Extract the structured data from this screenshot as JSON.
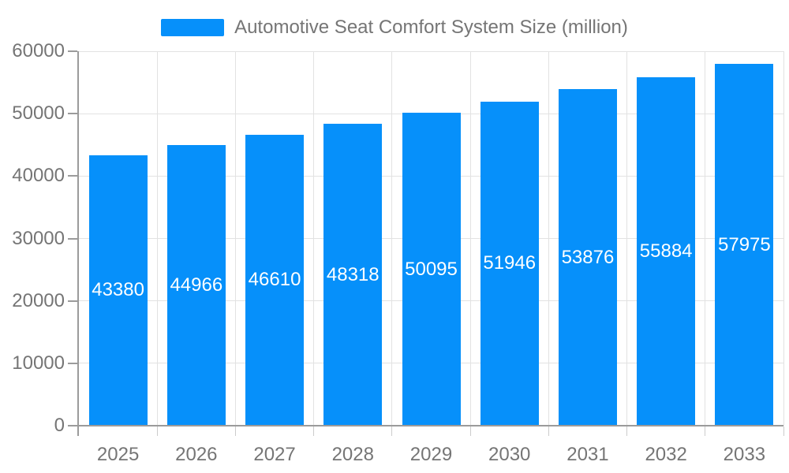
{
  "chart_data": {
    "type": "bar",
    "title": "Automotive Seat Comfort System Size (million)",
    "legend_entries": [
      "Automotive Seat Comfort System Size (million)"
    ],
    "legend_position": "top-center",
    "categories": [
      "2025",
      "2026",
      "2027",
      "2028",
      "2029",
      "2030",
      "2031",
      "2032",
      "2033"
    ],
    "values": [
      43380,
      44966,
      46610,
      48318,
      50095,
      51946,
      53876,
      55884,
      57975
    ],
    "bar_labels": [
      "43380",
      "44966",
      "46610",
      "48318",
      "50095",
      "51946",
      "53876",
      "55884",
      "57975"
    ],
    "xlabel": "",
    "ylabel": "",
    "ylim": [
      0,
      60000
    ],
    "ytick_values": [
      0,
      10000,
      20000,
      30000,
      40000,
      50000,
      60000
    ],
    "ytick_labels": [
      "0",
      "10000",
      "20000",
      "30000",
      "40000",
      "50000",
      "60000"
    ],
    "grid": true,
    "colors": {
      "bar": "#0690FA",
      "bar_label_text": "#FFFFFF",
      "axis_text": "#757575",
      "legend_text": "#757575",
      "grid_line": "#E2E2E2",
      "axis_line": "#9B9B9B",
      "x_tick": "#CCCCCC",
      "background": "#FFFFFF"
    }
  }
}
